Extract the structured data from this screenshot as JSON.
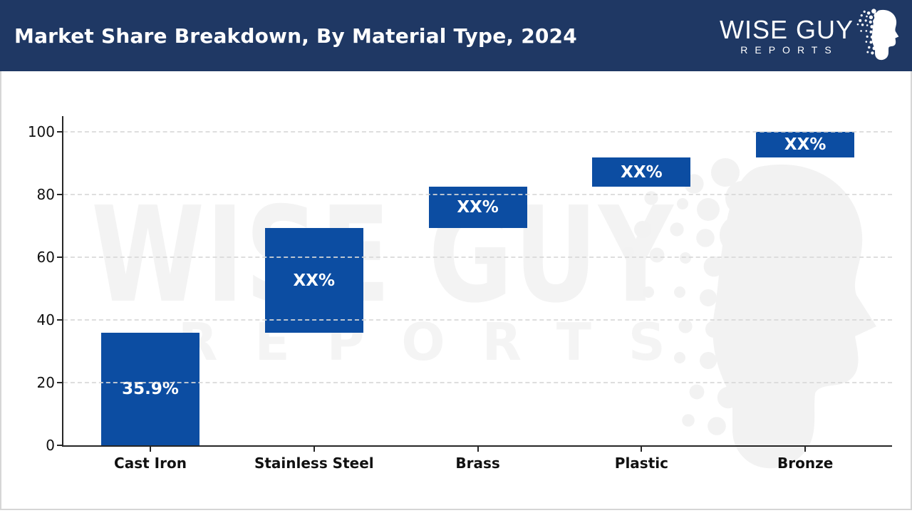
{
  "header": {
    "title": "Market Share Breakdown, By Material Type, 2024",
    "logo": {
      "line1": "WISE GUY",
      "line2": "REPORTS"
    }
  },
  "watermark": {
    "line1": "WISE GUY",
    "line2": "REPORTS"
  },
  "colors": {
    "header_bg": "#1f3864",
    "bar": "#0c4da2",
    "grid": "#d9d9d9",
    "axis": "#262626",
    "value_label": "#ffffff",
    "frame_border": "#d6d6d6",
    "watermark": "#f3f3f3"
  },
  "chart_data": {
    "type": "bar",
    "subtype": "waterfall-stacked",
    "title": "Market Share Breakdown, By Material Type, 2024",
    "categories": [
      "Cast Iron",
      "Stainless Steel",
      "Brass",
      "Plastic",
      "Bronze"
    ],
    "series": [
      {
        "name": "Cast Iron",
        "label": "35.9%",
        "start": 0,
        "end": 35.9
      },
      {
        "name": "Stainless Steel",
        "label": "XX%",
        "start": 35.9,
        "end": 69.3
      },
      {
        "name": "Brass",
        "label": "XX%",
        "start": 69.3,
        "end": 82.5
      },
      {
        "name": "Plastic",
        "label": "XX%",
        "start": 82.5,
        "end": 91.8
      },
      {
        "name": "Bronze",
        "label": "XX%",
        "start": 91.8,
        "end": 100
      }
    ],
    "xlabel": "",
    "ylabel": "",
    "ylim": [
      0,
      105
    ],
    "yticks": [
      0,
      20,
      40,
      60,
      80,
      100
    ],
    "grid": "horizontal-dashed",
    "legend": "none",
    "bar_color": "#0c4da2",
    "label_color": "#ffffff"
  }
}
